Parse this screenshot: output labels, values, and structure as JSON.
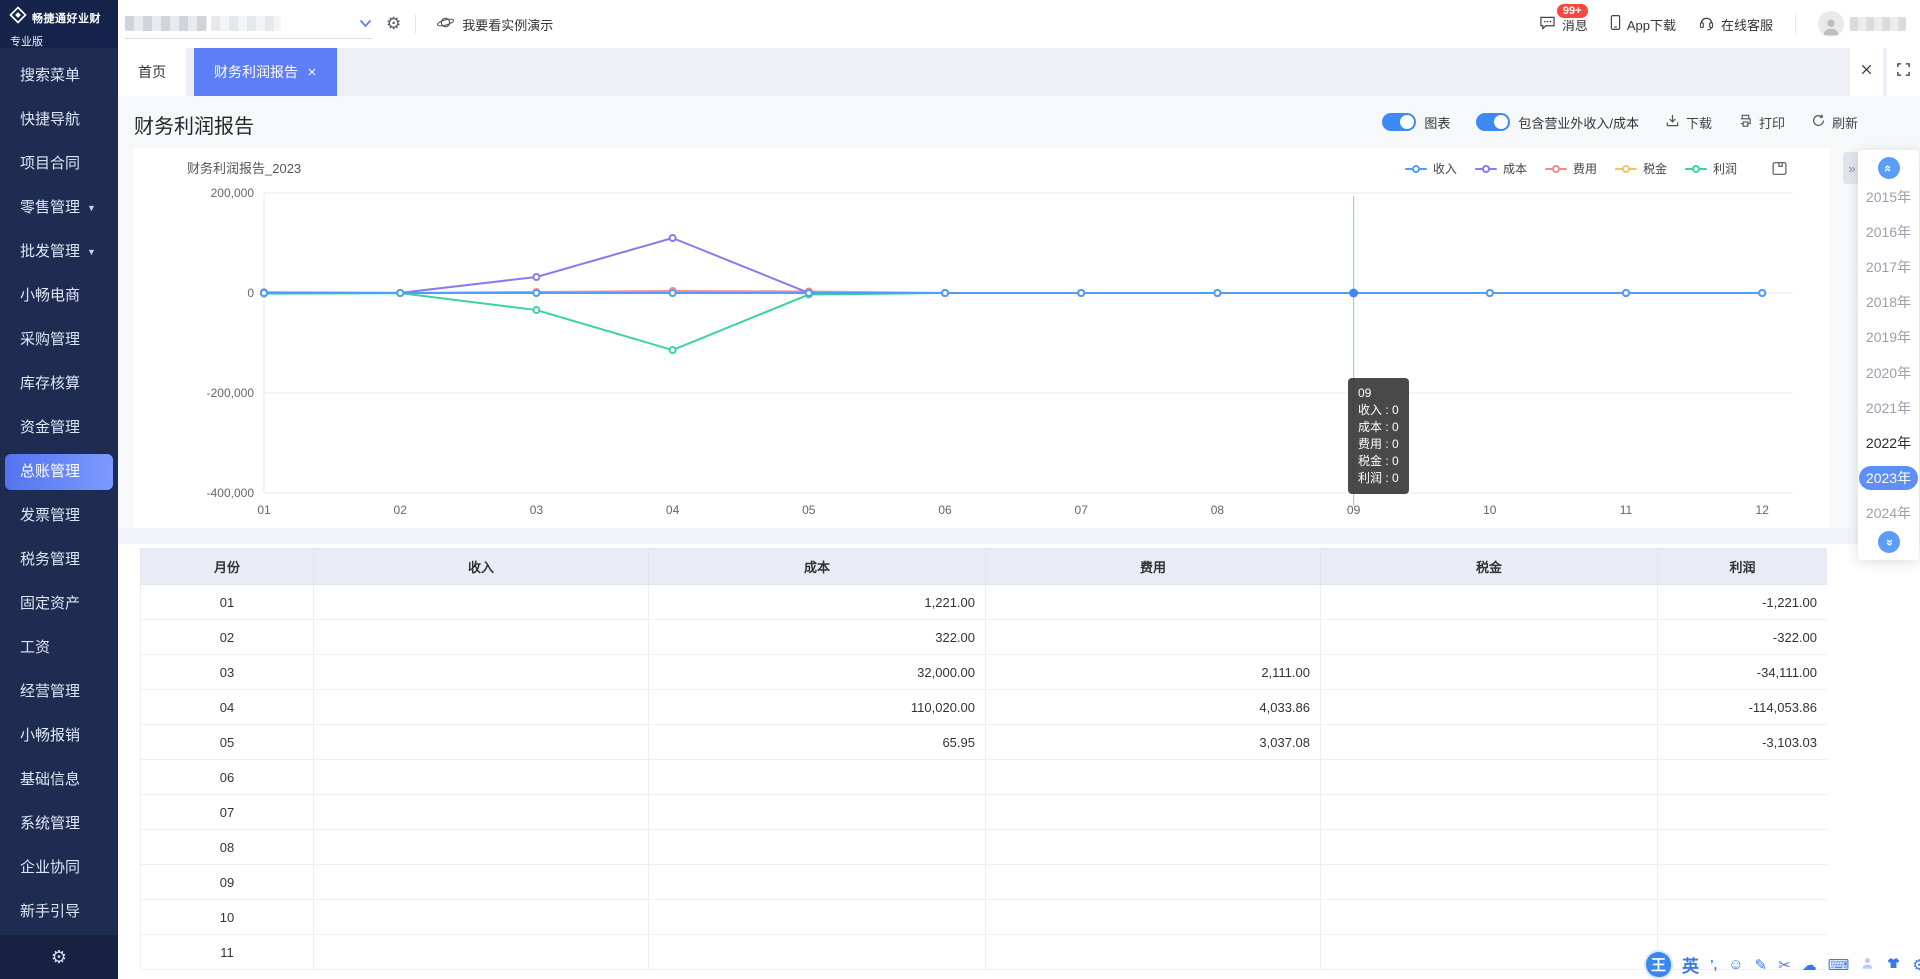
{
  "brand": {
    "logo_title": "畅捷通好业财",
    "edition": "专业版"
  },
  "topbar": {
    "demo_label": "我要看实例演示",
    "messages": "消息",
    "messages_badge": "99+",
    "app_download": "App下载",
    "online_support": "在线客服"
  },
  "tabs": [
    {
      "label": "首页",
      "active": false,
      "closable": false
    },
    {
      "label": "财务利润报告",
      "active": true,
      "closable": true
    }
  ],
  "sidebar": {
    "items": [
      {
        "label": "搜索菜单"
      },
      {
        "label": "快捷导航"
      },
      {
        "label": "项目合同"
      },
      {
        "label": "零售管理",
        "caret": true
      },
      {
        "label": "批发管理",
        "caret": true
      },
      {
        "label": "小畅电商"
      },
      {
        "label": "采购管理"
      },
      {
        "label": "库存核算"
      },
      {
        "label": "资金管理"
      },
      {
        "label": "总账管理",
        "active": true
      },
      {
        "label": "发票管理"
      },
      {
        "label": "税务管理"
      },
      {
        "label": "固定资产"
      },
      {
        "label": "工资"
      },
      {
        "label": "经营管理"
      },
      {
        "label": "小畅报销"
      },
      {
        "label": "基础信息"
      },
      {
        "label": "系统管理"
      },
      {
        "label": "企业协同"
      },
      {
        "label": "新手引导"
      }
    ]
  },
  "page": {
    "title": "财务利润报告",
    "toggles": [
      {
        "label": "图表",
        "on": true
      },
      {
        "label": "包含营业外收入/成本",
        "on": true
      }
    ],
    "actions": [
      {
        "label": "下载",
        "icon": "download"
      },
      {
        "label": "打印",
        "icon": "print"
      },
      {
        "label": "刷新",
        "icon": "refresh"
      }
    ]
  },
  "chart_data": {
    "type": "line",
    "title": "财务利润报告_2023",
    "categories": [
      "01",
      "02",
      "03",
      "04",
      "05",
      "06",
      "07",
      "08",
      "09",
      "10",
      "11",
      "12"
    ],
    "series": [
      {
        "name": "收入",
        "color": "#4f9ef8",
        "values": [
          0,
          0,
          0,
          0,
          0,
          0,
          0,
          0,
          0,
          0,
          0,
          0
        ]
      },
      {
        "name": "成本",
        "color": "#8a79f0",
        "values": [
          1221,
          322,
          32000,
          110020,
          65.95,
          0,
          0,
          0,
          0,
          0,
          0,
          0
        ]
      },
      {
        "name": "费用",
        "color": "#f28b8b",
        "values": [
          0,
          0,
          2111,
          4033.86,
          3037.08,
          0,
          0,
          0,
          0,
          0,
          0,
          0
        ]
      },
      {
        "name": "税金",
        "color": "#f3c361",
        "values": [
          0,
          0,
          0,
          0,
          0,
          0,
          0,
          0,
          0,
          0,
          0,
          0
        ]
      },
      {
        "name": "利润",
        "color": "#3cd2a5",
        "values": [
          -1221,
          -322,
          -34111,
          -114053.86,
          -3103.03,
          0,
          0,
          0,
          0,
          0,
          0,
          0
        ]
      }
    ],
    "ylim": [
      -400000,
      200000
    ],
    "yticks": [
      {
        "value": 200000,
        "label": "200,000"
      },
      {
        "value": 0,
        "label": "0"
      },
      {
        "value": -200000,
        "label": "-200,000"
      },
      {
        "value": -400000,
        "label": "-400,000"
      }
    ],
    "grid": true,
    "legend_position": "top-right",
    "hover_index": 8
  },
  "tooltip": {
    "title": "09",
    "rows": [
      {
        "label": "收入",
        "value": "0"
      },
      {
        "label": "成本",
        "value": "0"
      },
      {
        "label": "费用",
        "value": "0"
      },
      {
        "label": "税金",
        "value": "0"
      },
      {
        "label": "利润",
        "value": "0"
      }
    ]
  },
  "year_panel": {
    "years": [
      "2015年",
      "2016年",
      "2017年",
      "2018年",
      "2019年",
      "2020年",
      "2021年",
      "2022年",
      "2023年",
      "2024年"
    ],
    "selected": "2023年",
    "emphasized": "2022年"
  },
  "table": {
    "headers": [
      "月份",
      "收入",
      "成本",
      "费用",
      "税金",
      "利润"
    ],
    "rows": [
      [
        "01",
        "",
        "1,221.00",
        "",
        "",
        "-1,221.00"
      ],
      [
        "02",
        "",
        "322.00",
        "",
        "",
        "-322.00"
      ],
      [
        "03",
        "",
        "32,000.00",
        "2,111.00",
        "",
        "-34,111.00"
      ],
      [
        "04",
        "",
        "110,020.00",
        "4,033.86",
        "",
        "-114,053.86"
      ],
      [
        "05",
        "",
        "65.95",
        "3,037.08",
        "",
        "-3,103.03"
      ],
      [
        "06",
        "",
        "",
        "",
        "",
        ""
      ],
      [
        "07",
        "",
        "",
        "",
        "",
        ""
      ],
      [
        "08",
        "",
        "",
        "",
        "",
        ""
      ],
      [
        "09",
        "",
        "",
        "",
        "",
        ""
      ],
      [
        "10",
        "",
        "",
        "",
        "",
        ""
      ],
      [
        "11",
        "",
        "",
        "",
        "",
        ""
      ]
    ]
  },
  "ime": {
    "primary": "王",
    "lang": "英"
  },
  "colors": {
    "accent_tab": "#5e7ef7",
    "toggle_on": "#3d8af5",
    "badge": "#f6493c",
    "year_selected": "#5e8ff9",
    "sidebar_bg": "#1e2c52",
    "hover_line": "#8ed2ec"
  }
}
